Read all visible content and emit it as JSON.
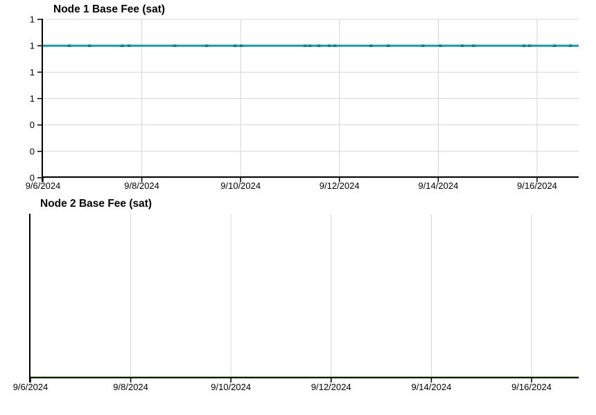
{
  "colors": {
    "background": "#ffffff",
    "axis": "#000000",
    "grid": "#d4d4d4",
    "text": "#000000"
  },
  "chart_data": [
    {
      "type": "line",
      "title": "Node 1 Base Fee (sat)",
      "ylabel": "",
      "xlabel": "",
      "unit": "sat",
      "x_tick_labels": [
        "9/6/2024",
        "9/8/2024",
        "9/10/2024",
        "9/12/2024",
        "9/14/2024",
        "9/16/2024"
      ],
      "x_start": "9/6/2024",
      "x_end_approx": "9/17/2024",
      "y_axis": {
        "range": [
          0,
          1.2
        ],
        "tick_values": [
          1.2,
          1.0,
          0.8,
          0.6,
          0.4,
          0.2,
          0.0
        ],
        "tick_labels": [
          "1",
          "1",
          "1",
          "1",
          "0",
          "0",
          "0"
        ]
      },
      "grid": {
        "horizontal": true,
        "vertical": true
      },
      "legend": false,
      "series": [
        {
          "name": "Node 1 Base Fee",
          "value_constant": 1,
          "color": "#1799a1",
          "marker_color": "#0c7d84"
        }
      ]
    },
    {
      "type": "line",
      "title": "Node 2 Base Fee (sat)",
      "ylabel": "",
      "xlabel": "",
      "unit": "sat",
      "x_tick_labels": [
        "9/6/2024",
        "9/8/2024",
        "9/10/2024",
        "9/12/2024",
        "9/14/2024",
        "9/16/2024"
      ],
      "x_start": "9/6/2024",
      "x_end_approx": "9/17/2024",
      "y_axis": {
        "range": [
          0,
          1
        ],
        "tick_values": [],
        "tick_labels": []
      },
      "grid": {
        "horizontal": false,
        "vertical": true
      },
      "legend": false,
      "series": [
        {
          "name": "Node 2 Base Fee",
          "value_constant": 0,
          "color": "#9fcc2e",
          "marker_color": "#9fcc2e"
        }
      ]
    }
  ]
}
